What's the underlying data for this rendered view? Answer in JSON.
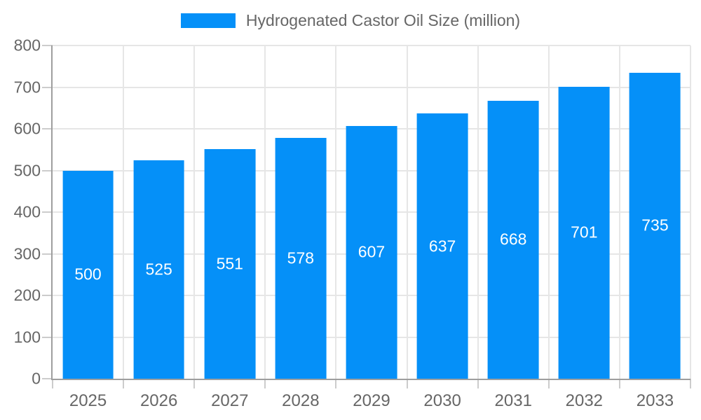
{
  "chart_data": {
    "type": "bar",
    "series_name": "Hydrogenated Castor Oil Size (million)",
    "categories": [
      "2025",
      "2026",
      "2027",
      "2028",
      "2029",
      "2030",
      "2031",
      "2032",
      "2033"
    ],
    "values": [
      500,
      525,
      551,
      578,
      607,
      637,
      668,
      701,
      735
    ],
    "yticks": [
      0,
      100,
      200,
      300,
      400,
      500,
      600,
      700,
      800
    ],
    "ylim": [
      0,
      800
    ],
    "xlabel": "",
    "ylabel": "",
    "grid": true,
    "legend_position": "top",
    "value_labels": "centered-inside-bars",
    "colors": {
      "bar": "#0590f8",
      "value_label": "#ffffff",
      "axis_text": "#666666",
      "grid_line": "#e6e6e6",
      "axis_line": "#9e9e9e",
      "tick_line": "#cccccc",
      "background": "#ffffff"
    }
  }
}
